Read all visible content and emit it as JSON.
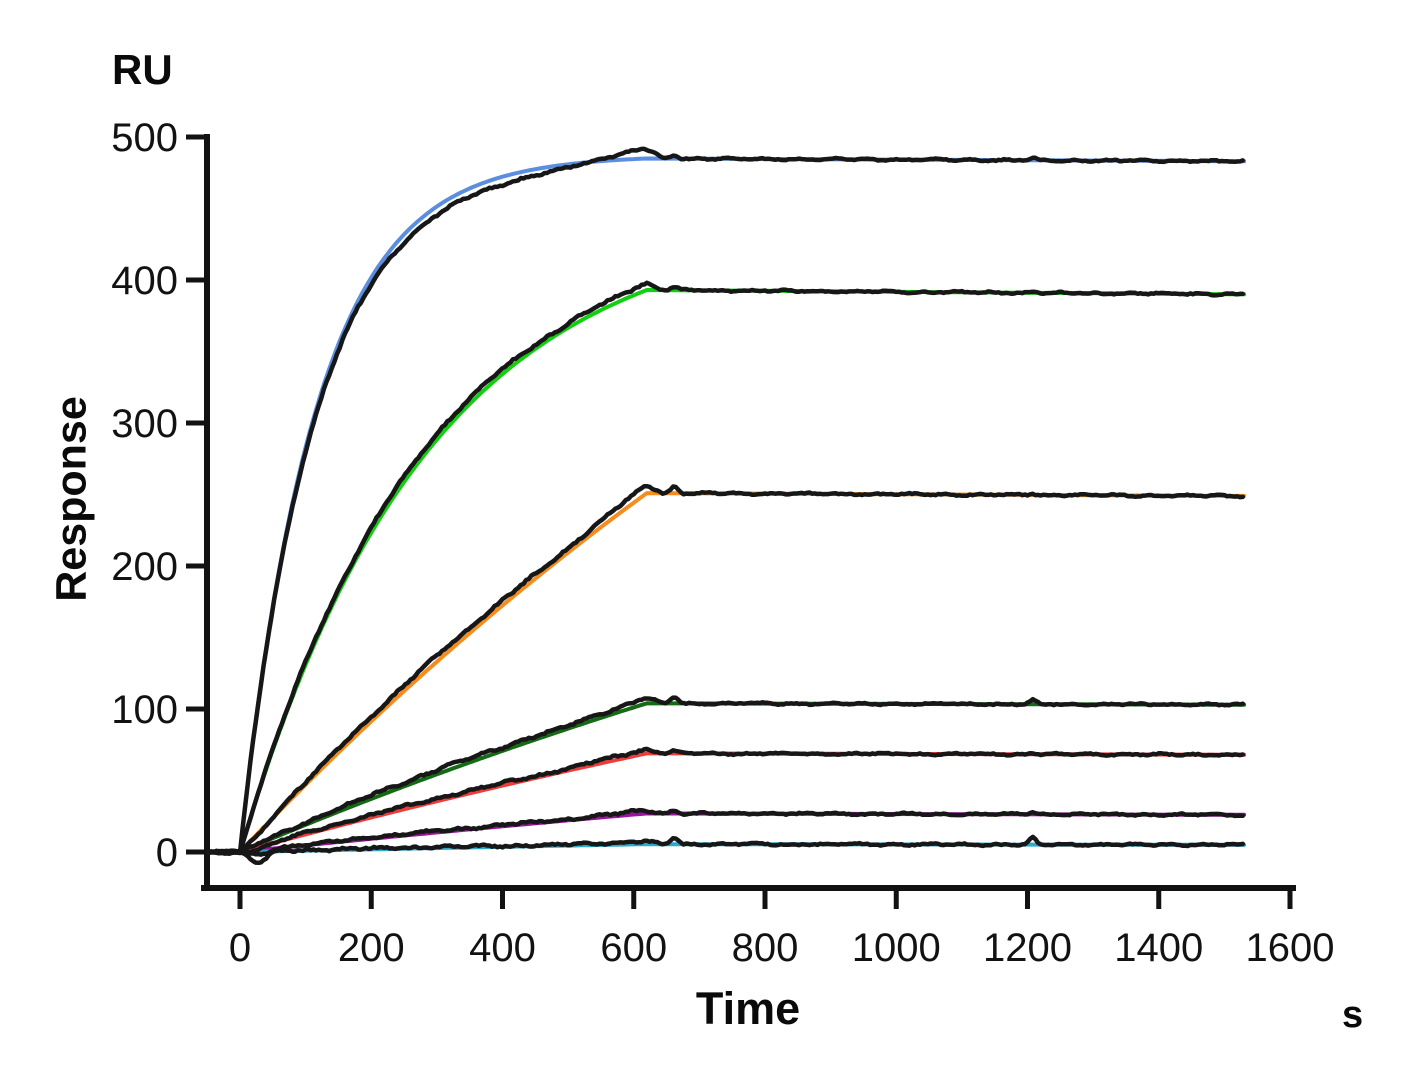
{
  "chart_data": {
    "type": "line",
    "title": "",
    "xlabel": "Time",
    "x_unit": "s",
    "ylabel": "Response",
    "y_unit": "RU",
    "xlim": [
      -75,
      1665
    ],
    "ylim": [
      -25,
      510
    ],
    "x_ticks": [
      0,
      200,
      400,
      600,
      800,
      1000,
      1200,
      1400,
      1600
    ],
    "y_ticks": [
      0,
      100,
      200,
      300,
      400,
      500
    ],
    "grid": false,
    "legend": "none",
    "axis_color": "#121212",
    "data_trace_color": "#171717",
    "association_start_s": 0,
    "association_end_s": 620,
    "curve_end_s": 1530,
    "baseline_start_s": -48,
    "series": [
      {
        "name": "blue",
        "fit_color": "#5b8edf",
        "kobs_per_s": 0.0087,
        "response_at_620s": 485,
        "response_at_1530s": 483,
        "data_peak_ru": 492,
        "fit_points": [
          [
            0,
            0
          ],
          [
            100,
            283
          ],
          [
            200,
            402
          ],
          [
            300,
            451
          ],
          [
            400,
            472
          ],
          [
            500,
            481
          ],
          [
            600,
            485
          ],
          [
            620,
            485
          ],
          [
            1000,
            484
          ],
          [
            1530,
            483
          ]
        ],
        "data_trace": {
          "mid_association_offset_ru": -6,
          "peak_overshoot_ru": 7,
          "artifact_660s_ru": 2.5,
          "artifact_1210s_ru": 1.5,
          "start_dip_ru": 0
        }
      },
      {
        "name": "green",
        "fit_color": "#12cf12",
        "kobs_per_s": 0.0035,
        "response_at_620s": 393,
        "response_at_1530s": 390,
        "data_peak_ru": 398,
        "fit_points": [
          [
            0,
            0
          ],
          [
            100,
            131
          ],
          [
            200,
            223
          ],
          [
            300,
            288
          ],
          [
            400,
            334
          ],
          [
            500,
            367
          ],
          [
            600,
            389
          ],
          [
            620,
            393
          ],
          [
            1000,
            391
          ],
          [
            1530,
            390
          ]
        ],
        "data_trace": {
          "mid_association_offset_ru": 4,
          "peak_overshoot_ru": 5,
          "artifact_660s_ru": 2.5,
          "artifact_1210s_ru": 1,
          "start_dip_ru": 0
        }
      },
      {
        "name": "orange",
        "fit_color": "#f58c1e",
        "kobs_per_s": 0.0006,
        "response_at_620s": 251,
        "response_at_1530s": 249,
        "data_peak_ru": 257,
        "fit_points": [
          [
            0,
            0
          ],
          [
            100,
            47
          ],
          [
            200,
            91
          ],
          [
            300,
            133
          ],
          [
            400,
            172
          ],
          [
            500,
            209
          ],
          [
            600,
            244
          ],
          [
            620,
            251
          ],
          [
            1000,
            250
          ],
          [
            1530,
            249
          ]
        ],
        "data_trace": {
          "mid_association_offset_ru": 4,
          "peak_overshoot_ru": 6,
          "artifact_660s_ru": 5,
          "artifact_1210s_ru": 1,
          "start_dip_ru": 2
        }
      },
      {
        "name": "dark-green",
        "fit_color": "#146b14",
        "kobs_per_s": 0.0005,
        "response_at_620s": 104,
        "response_at_1530s": 103,
        "data_peak_ru": 108,
        "fit_points": [
          [
            0,
            0
          ],
          [
            100,
            19
          ],
          [
            200,
            37
          ],
          [
            300,
            54
          ],
          [
            400,
            71
          ],
          [
            500,
            86
          ],
          [
            600,
            101
          ],
          [
            620,
            104
          ],
          [
            1000,
            103
          ],
          [
            1530,
            103
          ]
        ],
        "data_trace": {
          "mid_association_offset_ru": 3,
          "peak_overshoot_ru": 4,
          "artifact_660s_ru": 5,
          "artifact_1210s_ru": 3,
          "start_dip_ru": 0
        }
      },
      {
        "name": "red",
        "fit_color": "#ee3b3b",
        "kobs_per_s": 0.0004,
        "response_at_620s": 69,
        "response_at_1530s": 68,
        "data_peak_ru": 72,
        "fit_points": [
          [
            0,
            0
          ],
          [
            100,
            12
          ],
          [
            200,
            24
          ],
          [
            300,
            36
          ],
          [
            400,
            47
          ],
          [
            500,
            57
          ],
          [
            600,
            67
          ],
          [
            620,
            69
          ],
          [
            1000,
            69
          ],
          [
            1530,
            68
          ]
        ],
        "data_trace": {
          "mid_association_offset_ru": 2,
          "peak_overshoot_ru": 3,
          "artifact_660s_ru": 2,
          "artifact_1210s_ru": 1,
          "start_dip_ru": 2
        }
      },
      {
        "name": "purple",
        "fit_color": "#9c13a0",
        "kobs_per_s": 0.0003,
        "response_at_620s": 27,
        "response_at_1530s": 26,
        "data_peak_ru": 29,
        "fit_points": [
          [
            0,
            0
          ],
          [
            100,
            5
          ],
          [
            200,
            9
          ],
          [
            300,
            14
          ],
          [
            400,
            18
          ],
          [
            500,
            22
          ],
          [
            600,
            26
          ],
          [
            620,
            27
          ],
          [
            1000,
            27
          ],
          [
            1530,
            26
          ]
        ],
        "data_trace": {
          "mid_association_offset_ru": 1,
          "peak_overshoot_ru": 2,
          "artifact_660s_ru": 2.5,
          "artifact_1210s_ru": 2,
          "start_dip_ru": 4
        }
      },
      {
        "name": "cyan",
        "fit_color": "#2fa9c9",
        "kobs_per_s": 0.0002,
        "response_at_620s": 5.5,
        "response_at_1530s": 5,
        "data_peak_ru": 7.5,
        "fit_points": [
          [
            0,
            0
          ],
          [
            200,
            2
          ],
          [
            400,
            4
          ],
          [
            600,
            5.3
          ],
          [
            620,
            5.5
          ],
          [
            1000,
            5
          ],
          [
            1530,
            5
          ]
        ],
        "data_trace": {
          "mid_association_offset_ru": 0.8,
          "peak_overshoot_ru": 2,
          "artifact_660s_ru": 5,
          "artifact_1210s_ru": 5,
          "start_dip_ru": 8
        }
      }
    ]
  }
}
